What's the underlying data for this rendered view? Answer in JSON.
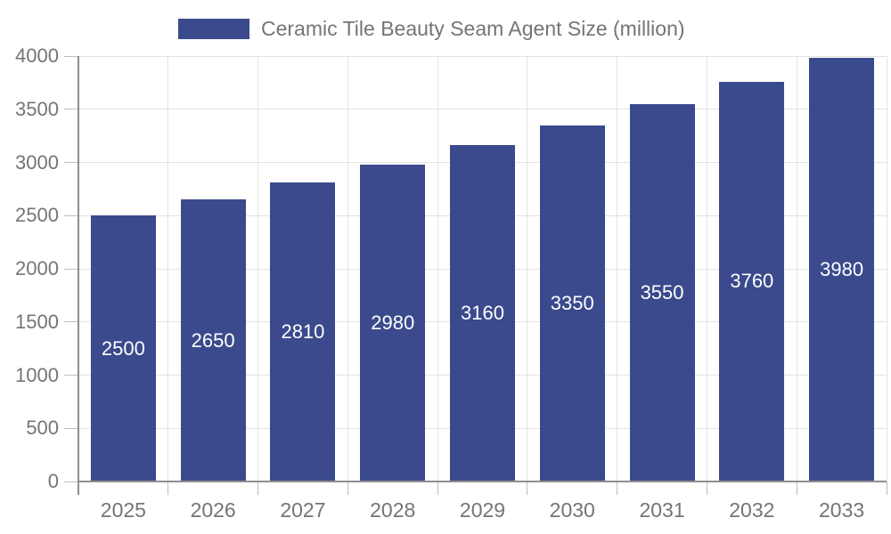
{
  "chart_data": {
    "type": "bar",
    "title": "Ceramic Tile Beauty Seam Agent Size (million)",
    "categories": [
      "2025",
      "2026",
      "2027",
      "2028",
      "2029",
      "2030",
      "2031",
      "2032",
      "2033"
    ],
    "series": [
      {
        "name": "Ceramic Tile Beauty Seam Agent Size (million)",
        "values": [
          2500,
          2650,
          2810,
          2980,
          3160,
          3350,
          3550,
          3760,
          3980
        ]
      }
    ],
    "xlabel": "",
    "ylabel": "",
    "ylim": [
      0,
      4000
    ],
    "yticks": [
      0,
      500,
      1000,
      1500,
      2000,
      2500,
      3000,
      3500,
      4000
    ],
    "grid": true,
    "legend_position": "top-center",
    "value_labels": "inside-center",
    "colors": {
      "bar": "#3A4A8C",
      "value_label_text": "#FFFFFF",
      "axis_text": "#757575",
      "axis_line": "#8F8F8F",
      "gridline": "#E3E3E3",
      "background": "#FFFFFF"
    }
  }
}
